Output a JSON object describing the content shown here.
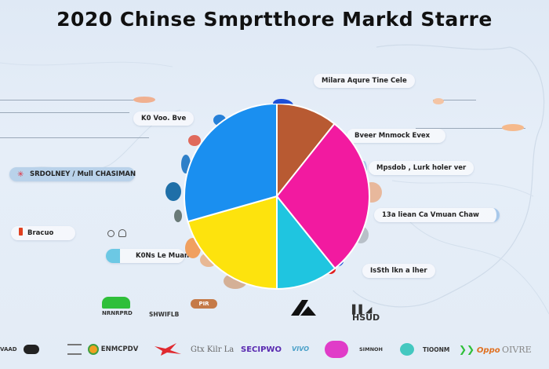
{
  "title": "2020 Chinse Smprtthore Markd Starre",
  "labels": {
    "top_right": "Milara Aqure Tine Cele",
    "left_upper": "K0 Voo. Bve",
    "right_upper": "Bveer Mnmock Evex",
    "left_mid": "SRDOLNEY / Mull CHASIMAN",
    "right_mid": "Mpsdob , Lurk holer ver",
    "right_lower": "13a liean Ca Vmuan Chaw",
    "left_lower": "Bracuo",
    "left_bottom": "K0Ns Le Muan",
    "right_bottom": "IsSth lkn a lher"
  },
  "logos_row1": [
    "NRNRPRD",
    "PIR",
    "SHWIFLB",
    "A",
    "HSUD"
  ],
  "logos_row2": [
    "VAAD",
    "GBMO",
    "ENMCPDV",
    "Gtx Kilr La",
    "SECIPWO",
    "VIVO",
    "SIMNOH",
    "TIOONM",
    "Oppo",
    "OIVRE"
  ],
  "colors": {
    "brown": "#b85a32",
    "magenta": "#f21aa0",
    "cyan": "#1fc5e0",
    "yellow": "#fde30d",
    "blue": "#1a8ff0"
  },
  "chart_data": {
    "type": "pie",
    "title": "2020 Chinse Smprtthore Markd Starre",
    "slices": [
      {
        "label": "Brown segment",
        "color": "#b85a32",
        "value": 10.7
      },
      {
        "label": "Magenta segment",
        "color": "#f21aa0",
        "value": 28.5
      },
      {
        "label": "Cyan segment",
        "color": "#1fc5e0",
        "value": 10.8
      },
      {
        "label": "Yellow segment",
        "color": "#fde30d",
        "value": 20.6
      },
      {
        "label": "Blue segment",
        "color": "#1a8ff0",
        "value": 29.4
      }
    ],
    "start_angle": "12 o'clock, clockwise",
    "legend_position": "none (callout pills around pie)"
  }
}
